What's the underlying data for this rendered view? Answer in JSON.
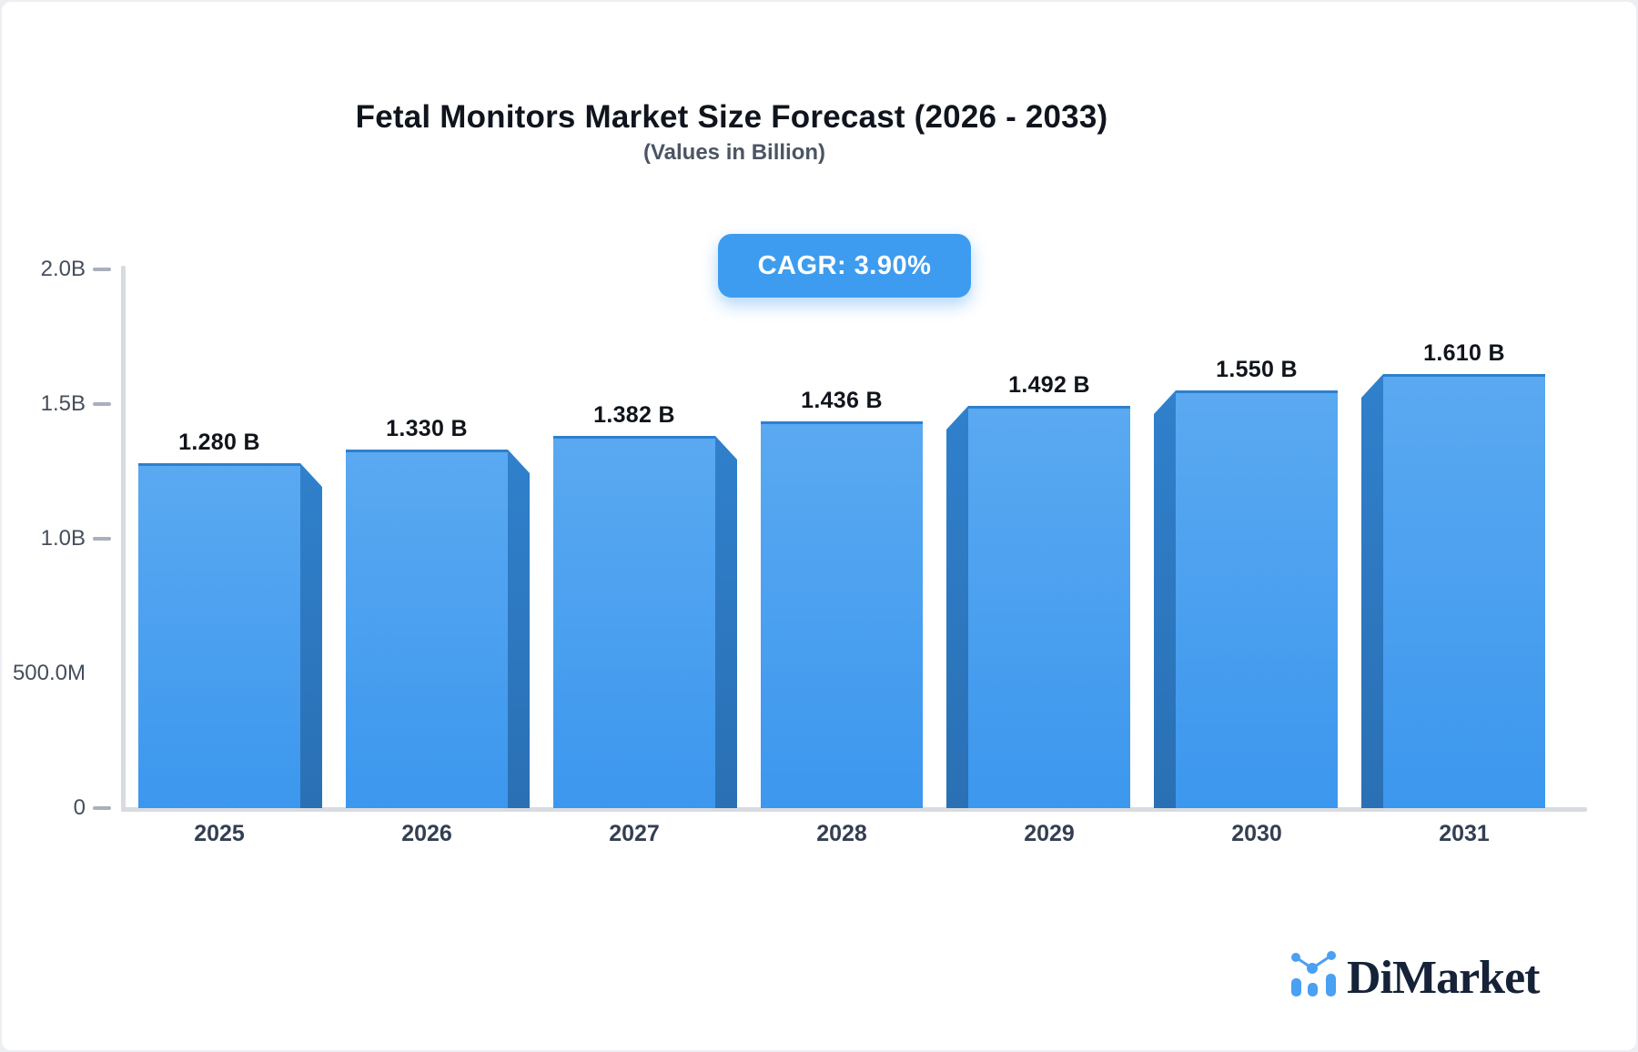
{
  "header": {
    "title": "Fetal Monitors Market Size Forecast (2026 - 2033)",
    "subtitle": "(Values in Billion)"
  },
  "badge": {
    "label": "CAGR: 3.90%"
  },
  "footer": {
    "brand": "DiMarket"
  },
  "chart_data": {
    "type": "bar",
    "title": "Fetal Monitors Market Size Forecast (2026 - 2033)",
    "subtitle": "(Values in Billion)",
    "cagr": "3.90%",
    "categories": [
      "2025",
      "2026",
      "2027",
      "2028",
      "2029",
      "2030",
      "2031"
    ],
    "values": [
      1.28,
      1.33,
      1.382,
      1.436,
      1.492,
      1.55,
      1.61
    ],
    "value_labels": [
      "1.280 B",
      "1.330 B",
      "1.382 B",
      "1.436 B",
      "1.492 B",
      "1.550 B",
      "1.610 B"
    ],
    "unit": "Billion",
    "ylim": [
      0,
      2.0
    ],
    "y_ticks": [
      {
        "label": "2.0B",
        "value": 2.0,
        "dash": true
      },
      {
        "label": "1.5B",
        "value": 1.5,
        "dash": true
      },
      {
        "label": "1.0B",
        "value": 1.0,
        "dash": true
      },
      {
        "label": "500.0M",
        "value": 0.5,
        "dash": false
      },
      {
        "label": "0",
        "value": 0.0,
        "dash": true
      }
    ],
    "grid": false,
    "legend": false,
    "colors": {
      "bar_top": "#5aa9f1",
      "bar_bottom": "#3c97ee",
      "bar_side_top": "#3080cc",
      "bar_side_bottom": "#2a70b4",
      "accent_badge": "#3d9cef",
      "axis_line": "#d8dbe0",
      "tick_dash": "#a9b0bb",
      "logo_navy": "#152238",
      "logo_blue": "#4aa0f2"
    }
  }
}
